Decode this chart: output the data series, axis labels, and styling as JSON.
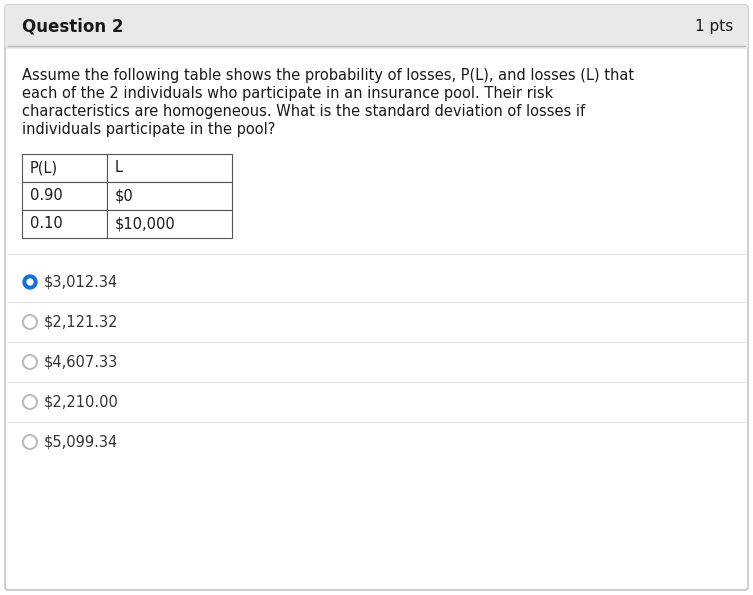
{
  "title": "Question 2",
  "pts": "1 pts",
  "question_text": [
    "Assume the following table shows the probability of losses, P(L), and losses (L) that",
    "each of the 2 individuals who participate in an insurance pool. Their risk",
    "characteristics are homogeneous. What is the standard deviation of losses if",
    "individuals participate in the pool?"
  ],
  "table_headers": [
    "P(L)",
    "L"
  ],
  "table_rows": [
    [
      "0.90",
      "$0"
    ],
    [
      "0.10",
      "$10,000"
    ]
  ],
  "options": [
    {
      "text": "$3,012.34",
      "selected": true
    },
    {
      "text": "$2,121.32",
      "selected": false
    },
    {
      "text": "$4,607.33",
      "selected": false
    },
    {
      "text": "$2,210.00",
      "selected": false
    },
    {
      "text": "$5,099.34",
      "selected": false
    }
  ],
  "header_bg": "#e9e9e9",
  "header_text_color": "#1a1a1a",
  "body_bg": "#ffffff",
  "outer_border_color": "#bbbbbb",
  "table_border_color": "#555555",
  "selected_color": "#1a6fd4",
  "unselected_color": "#bbbbbb",
  "option_text_color": "#333333",
  "divider_color": "#dddddd",
  "title_font_size": 12,
  "pts_font_size": 11,
  "question_font_size": 10.5,
  "table_font_size": 10.5,
  "option_font_size": 10.5,
  "fig_width": 7.53,
  "fig_height": 5.95,
  "dpi": 100
}
